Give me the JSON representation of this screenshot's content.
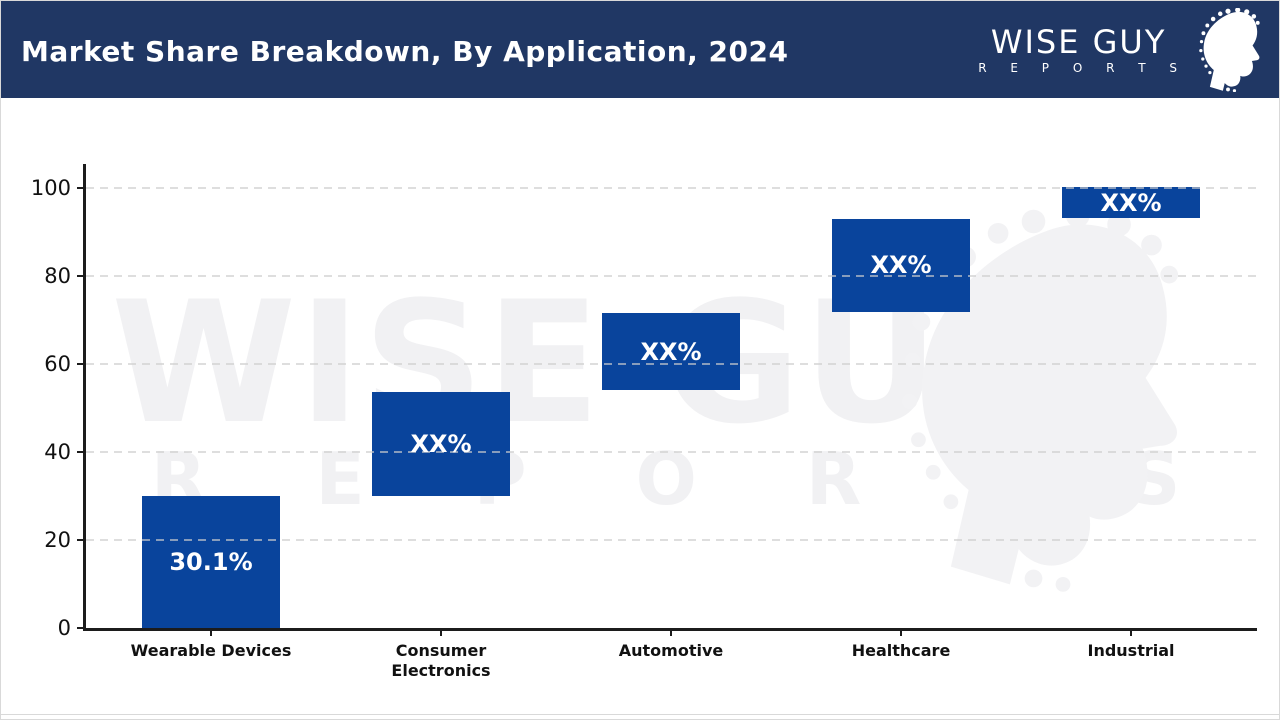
{
  "header": {
    "title": "Market Share Breakdown, By Application, 2024",
    "logo": {
      "brand": "WISE GUY",
      "sub": "R E P O R T S",
      "face_icon": "dotted-face-profile"
    }
  },
  "watermark": {
    "line1": "WISE GUY",
    "line2": "R E P O R T S"
  },
  "colors": {
    "header_bg": "#203764",
    "title_text": "#ffffff",
    "bar": "#09449c",
    "bar_label": "#ffffff",
    "axis": "#1c1c1c",
    "tick_label": "#111111",
    "grid": "#cdcdcd",
    "watermark": "#f1f1f3",
    "border": "#d9d9d9",
    "background": "#ffffff"
  },
  "chart_data": {
    "type": "bar",
    "subtype": "waterfall-floating-bars",
    "title": "Market Share Breakdown, By Application, 2024",
    "categories": [
      "Wearable Devices",
      "Consumer\nElectronics",
      "Automotive",
      "Healthcare",
      "Industrial"
    ],
    "segments": [
      {
        "category": "Wearable Devices",
        "start": 0,
        "end": 30.1,
        "label": "30.1%"
      },
      {
        "category": "Consumer Electronics",
        "start": 30.1,
        "end": 53.6,
        "label": "XX%"
      },
      {
        "category": "Automotive",
        "start": 54.0,
        "end": 71.6,
        "label": "XX%"
      },
      {
        "category": "Healthcare",
        "start": 71.9,
        "end": 93.0,
        "label": "XX%"
      },
      {
        "category": "Industrial",
        "start": 93.2,
        "end": 100.2,
        "label": "XX%"
      }
    ],
    "yticks": [
      0,
      20,
      40,
      60,
      80,
      100
    ],
    "ylim": [
      0,
      105.5
    ],
    "xlabel": "",
    "ylabel": "",
    "grid": "horizontal-dashed",
    "legend": "none"
  }
}
